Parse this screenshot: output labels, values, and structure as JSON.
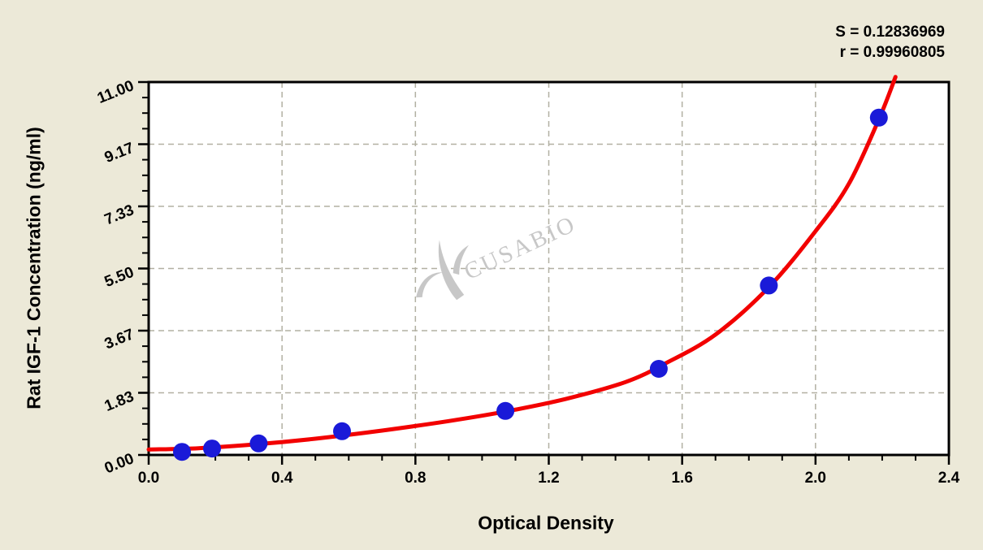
{
  "window": {
    "background_color": "#ece9d8"
  },
  "stats": {
    "s": "S = 0.12836969",
    "r": "r = 0.99960805"
  },
  "watermark": {
    "text": "CUSABIO",
    "icon": "cusabio-logo",
    "color": "#c7c7c7"
  },
  "chart_data": {
    "type": "scatter",
    "title": "",
    "xlabel": "Optical Density",
    "ylabel": "Rat IGF-1 Concentration (ng/ml)",
    "xlim": [
      0,
      2.4
    ],
    "ylim": [
      0,
      11
    ],
    "x_major_ticks": [
      0,
      0.4,
      0.8,
      1.2,
      1.6,
      2.0,
      2.4
    ],
    "x_tick_labels": [
      "0.0",
      "0.4",
      "0.8",
      "1.2",
      "1.6",
      "2.0",
      "2.4"
    ],
    "x_minor_step": 0.1,
    "y_major_ticks": [
      0,
      1.8333,
      3.6667,
      5.5,
      7.3333,
      9.1667,
      11
    ],
    "y_tick_labels": [
      "0.00",
      "1.83",
      "3.67",
      "5.50",
      "7.33",
      "9.17",
      "11.00"
    ],
    "y_minor_divisions": 4,
    "grid": {
      "show": true,
      "style": "dashed",
      "color": "#b2b0a2"
    },
    "plot_background": "#ffffff",
    "frame_color": "#000000",
    "points": {
      "series_name": "standards",
      "marker": "circle",
      "color": "#1a1ad8",
      "radius": 11,
      "data": [
        {
          "od": 0.1,
          "conc": 0.09
        },
        {
          "od": 0.19,
          "conc": 0.19
        },
        {
          "od": 0.33,
          "conc": 0.34
        },
        {
          "od": 0.58,
          "conc": 0.7
        },
        {
          "od": 1.07,
          "conc": 1.3
        },
        {
          "od": 1.53,
          "conc": 2.54
        },
        {
          "od": 1.86,
          "conc": 5.0
        },
        {
          "od": 2.19,
          "conc": 9.95
        }
      ]
    },
    "fit_curve": {
      "series_name": "regression-curve",
      "color": "#f20000",
      "width": 5,
      "points": [
        [
          0.0,
          0.16
        ],
        [
          0.15,
          0.2
        ],
        [
          0.33,
          0.32
        ],
        [
          0.5,
          0.48
        ],
        [
          0.7,
          0.72
        ],
        [
          0.9,
          1.0
        ],
        [
          1.07,
          1.28
        ],
        [
          1.25,
          1.65
        ],
        [
          1.43,
          2.15
        ],
        [
          1.55,
          2.7
        ],
        [
          1.7,
          3.55
        ],
        [
          1.86,
          4.95
        ],
        [
          2.0,
          6.6
        ],
        [
          2.1,
          8.0
        ],
        [
          2.19,
          9.9
        ],
        [
          2.24,
          11.15
        ]
      ]
    },
    "statistics": {
      "S": "0.12836969",
      "r": "0.99960805"
    },
    "legend": null
  }
}
